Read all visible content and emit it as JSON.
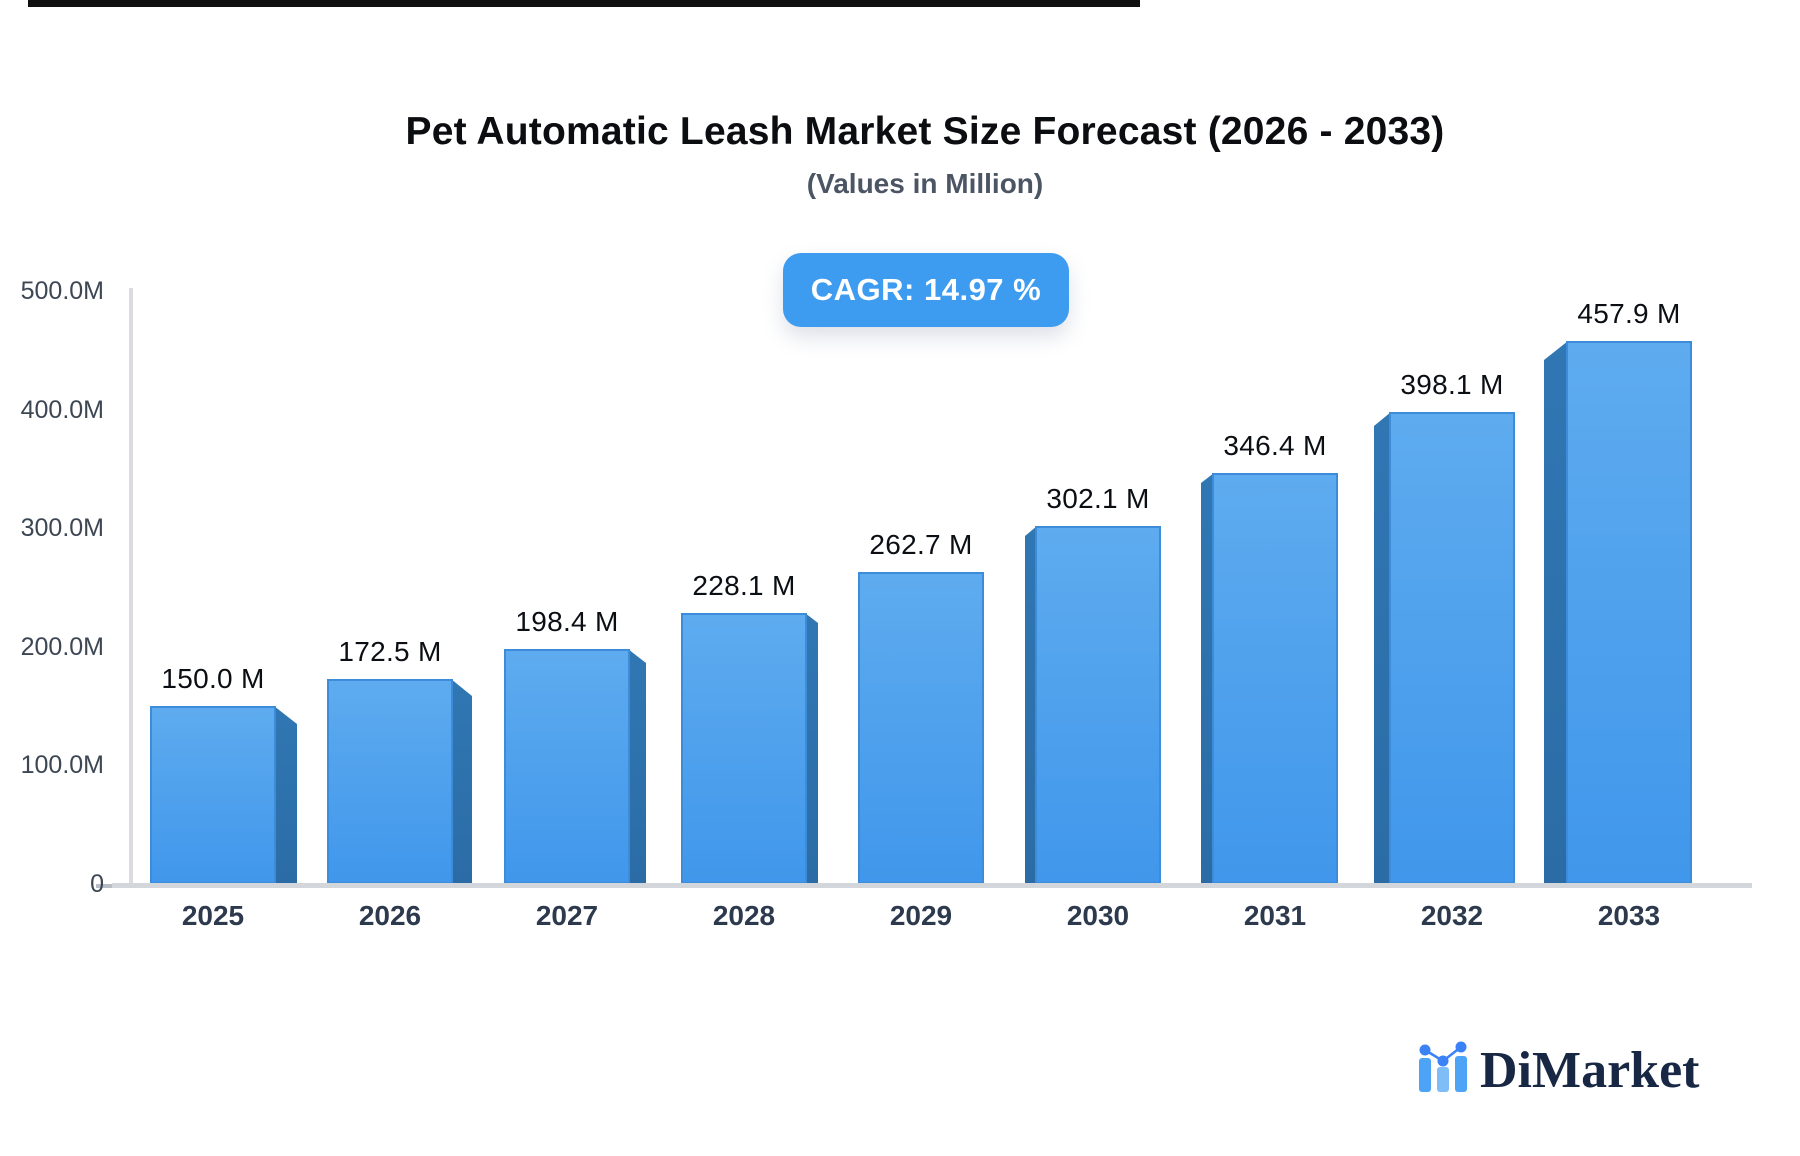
{
  "header": {
    "title": "Pet Automatic Leash Market Size Forecast (2026 - 2033)",
    "subtitle": "(Values in Million)"
  },
  "badge": {
    "label": "CAGR: 14.97 %"
  },
  "chart_data": {
    "type": "bar",
    "title": "Pet Automatic Leash Market Size Forecast (2026 - 2033)",
    "subtitle": "(Values in Million)",
    "cagr_percent": 14.97,
    "categories": [
      "2025",
      "2026",
      "2027",
      "2028",
      "2029",
      "2030",
      "2031",
      "2032",
      "2033"
    ],
    "values": [
      150.0,
      172.5,
      198.4,
      228.1,
      262.7,
      302.1,
      346.4,
      398.1,
      457.9
    ],
    "value_labels": [
      "150.0 M",
      "172.5 M",
      "198.4 M",
      "228.1 M",
      "262.7 M",
      "302.1 M",
      "346.4 M",
      "398.1 M",
      "457.9 M"
    ],
    "xlabel": "",
    "ylabel": "",
    "ylim": [
      0,
      500
    ],
    "y_ticks": [
      "500.0M",
      "400.0M",
      "300.0M",
      "200.0M",
      "100.0M",
      "0"
    ],
    "y_tick_values": [
      500,
      400,
      300,
      200,
      100,
      0
    ],
    "grid": false,
    "legend": false,
    "colors": {
      "bar_face_top": "#5EABEF",
      "bar_face_bottom": "#4097EB",
      "bar_side": "#2E74AE",
      "badge": "#3D9BF0",
      "axis_line": "#D3D6DB",
      "text_dark": "#0B0F14"
    }
  },
  "logo": {
    "text": "DiMarket"
  }
}
